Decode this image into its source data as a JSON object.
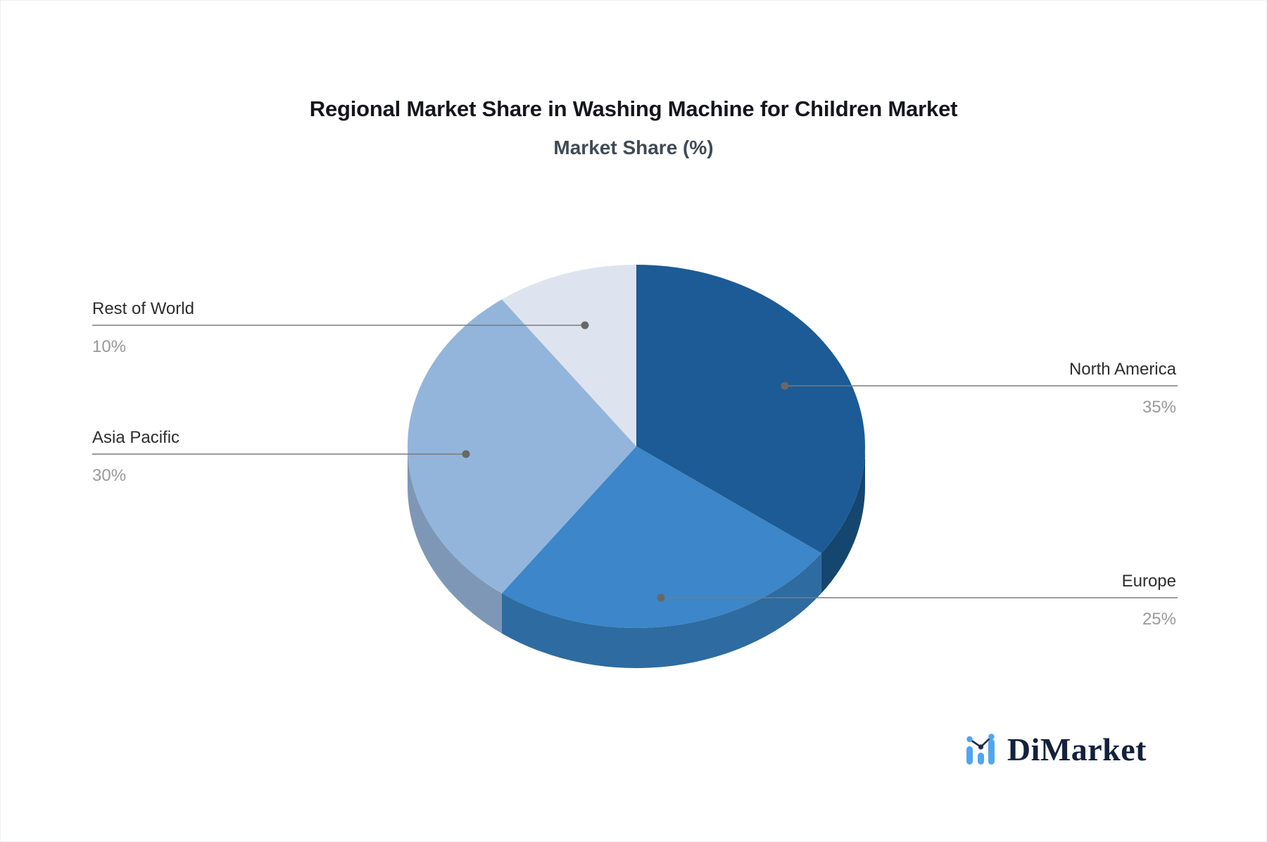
{
  "header": {
    "title": "Regional Market Share in Washing Machine for Children Market",
    "subtitle": "Market Share (%)"
  },
  "chart_data": {
    "type": "pie",
    "style": "3d",
    "title": "Regional Market Share in Washing Machine for Children Market",
    "subtitle": "Market Share (%)",
    "unit": "%",
    "start_angle_deg": 0,
    "direction": "clockwise",
    "legend_position": "callout-labels",
    "slices": [
      {
        "label": "North America",
        "value": 35,
        "display": "35%",
        "color": "#1C5B95",
        "side_color": "#15466F",
        "label_side": "right"
      },
      {
        "label": "Europe",
        "value": 25,
        "display": "25%",
        "color": "#3C86C9",
        "side_color": "#2E6BA0",
        "label_side": "right"
      },
      {
        "label": "Asia Pacific",
        "value": 30,
        "display": "30%",
        "color": "#93B5DB",
        "side_color": "#7E97B6",
        "label_side": "left"
      },
      {
        "label": "Rest of World",
        "value": 10,
        "display": "10%",
        "color": "#DEE4EF",
        "side_color": "#BAC4D4",
        "label_side": "left"
      }
    ]
  },
  "branding": {
    "logo_text": "DiMarket",
    "logo_icon": "bar-chart-trend-icon"
  },
  "colors": {
    "title_text": "#14161c",
    "subtitle_text": "#3f4a56",
    "label_text": "#2d2d2d",
    "percent_text": "#999999",
    "leader_line": "#7b7b7b",
    "leader_dot": "#686868",
    "logo_text": "#14213d",
    "logo_accent": "#4FA5F2",
    "logo_line": "#1E2C4E"
  }
}
